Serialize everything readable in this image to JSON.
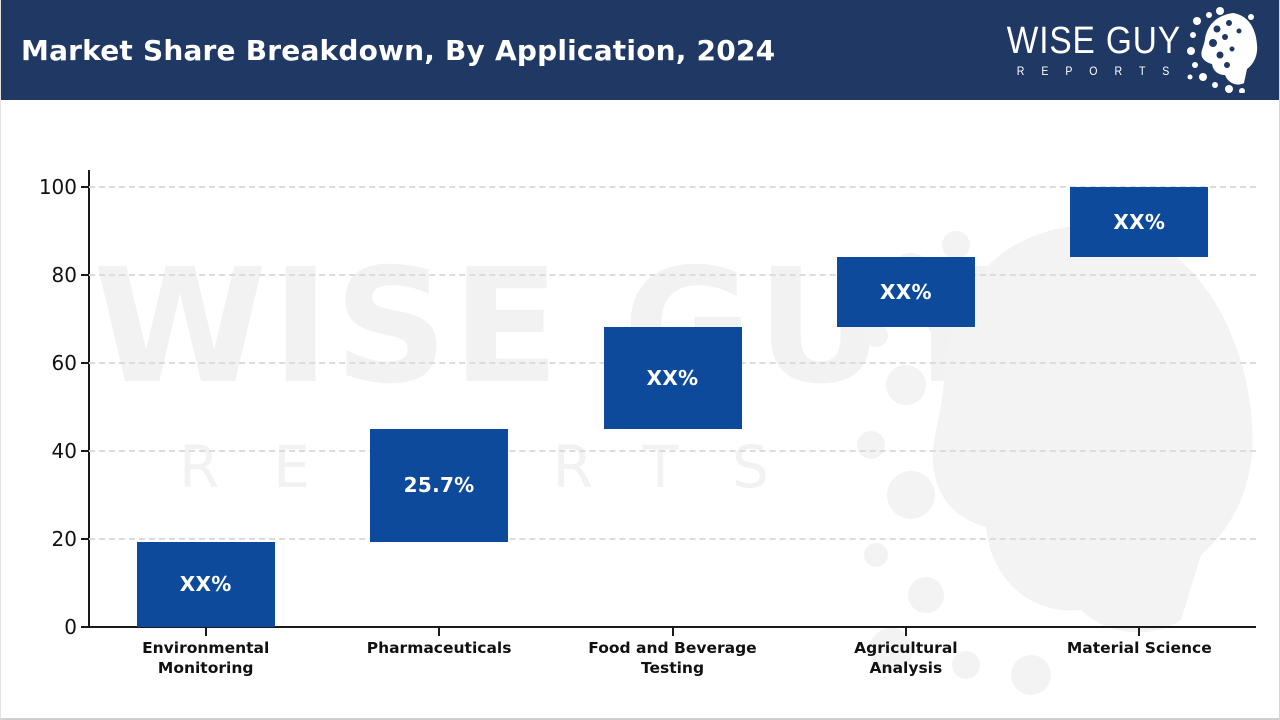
{
  "header": {
    "title": "Market Share Breakdown, By Application, 2024",
    "logo": {
      "line1": "WISE GUY",
      "line2": "R E P O R T S"
    }
  },
  "watermark": {
    "line1": "WISE GUY",
    "line2": "REPORTS"
  },
  "colors": {
    "header_bg": "#1f3864",
    "bar_fill": "#0d4a9c",
    "bar_label": "#ffffff",
    "grid": "#dcdcdc",
    "axis": "#1a1a1a",
    "watermark": "#f2f2f2"
  },
  "chart_data": {
    "type": "bar",
    "subtype": "waterfall",
    "title": "Market Share Breakdown, By Application, 2024",
    "xlabel": "",
    "ylabel": "",
    "ylim": [
      0,
      104
    ],
    "y_ticks": [
      0,
      20,
      40,
      60,
      80,
      100
    ],
    "grid": "horizontal-dashed",
    "legend": "none",
    "categories": [
      "Environmental Monitoring",
      "Pharmaceuticals",
      "Food and Beverage Testing",
      "Agricultural Analysis",
      "Material Science"
    ],
    "category_lines": [
      [
        "Environmental",
        "Monitoring"
      ],
      [
        "Pharmaceuticals"
      ],
      [
        "Food and Beverage",
        "Testing"
      ],
      [
        "Agricultural",
        "Analysis"
      ],
      [
        "Material Science"
      ]
    ],
    "segments": [
      {
        "category": "Environmental Monitoring",
        "start": 0,
        "end": 19.3,
        "value_label": "XX%"
      },
      {
        "category": "Pharmaceuticals",
        "start": 19.3,
        "end": 45.0,
        "value_label": "25.7%"
      },
      {
        "category": "Food and Beverage Testing",
        "start": 45.0,
        "end": 68.0,
        "value_label": "XX%"
      },
      {
        "category": "Agricultural Analysis",
        "start": 68.0,
        "end": 84.0,
        "value_label": "XX%"
      },
      {
        "category": "Material Science",
        "start": 84.0,
        "end": 100.0,
        "value_label": "XX%"
      }
    ]
  }
}
